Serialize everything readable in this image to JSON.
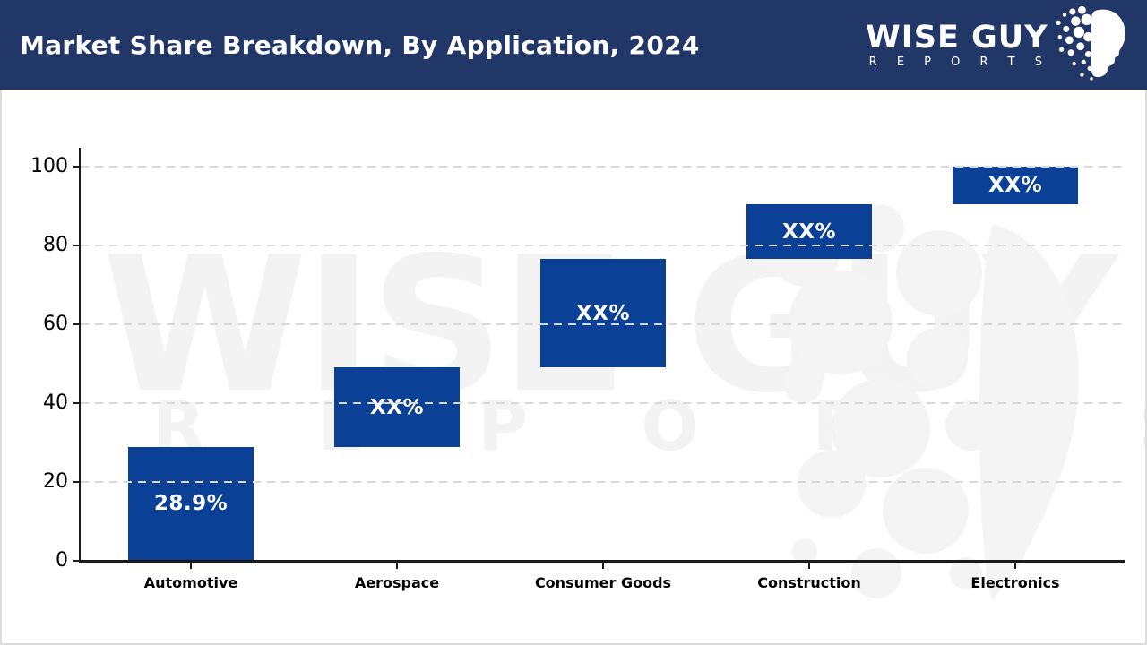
{
  "header": {
    "title": "Market Share Breakdown, By Application, 2024",
    "logo": {
      "name": "WISE GUY",
      "sub": "R E P O R T S"
    }
  },
  "watermark": {
    "line1": "WISE GUY",
    "line2": "R E P O R T S"
  },
  "colors": {
    "header_bg": "#203768",
    "bar": "#0B4097",
    "axis": "#1A1A1A",
    "grid": "#D9D9D9",
    "bar_label": "#FFFFFF",
    "watermark": "#F3F3F3"
  },
  "chart_data": {
    "type": "bar",
    "subtype": "waterfall",
    "title": "Market Share Breakdown, By Application, 2024",
    "categories": [
      "Automotive",
      "Aerospace",
      "Consumer Goods",
      "Construction",
      "Electronics"
    ],
    "bars": [
      {
        "category": "Automotive",
        "start": 0,
        "end": 28.9,
        "label": "28.9%"
      },
      {
        "category": "Aerospace",
        "start": 28.9,
        "end": 49.0,
        "label": "XX%"
      },
      {
        "category": "Consumer Goods",
        "start": 49.0,
        "end": 76.5,
        "label": "XX%"
      },
      {
        "category": "Construction",
        "start": 76.5,
        "end": 90.5,
        "label": "XX%"
      },
      {
        "category": "Electronics",
        "start": 90.5,
        "end": 100,
        "label": "XX%"
      }
    ],
    "ylim": [
      0,
      100
    ],
    "yticks": [
      0,
      20,
      40,
      60,
      80,
      100
    ],
    "xlabel": "",
    "ylabel": "",
    "grid": "horizontal-dashed-above-bars",
    "legend": "none",
    "bar_color": "#0B4097",
    "value_label_color": "#FFFFFF"
  }
}
